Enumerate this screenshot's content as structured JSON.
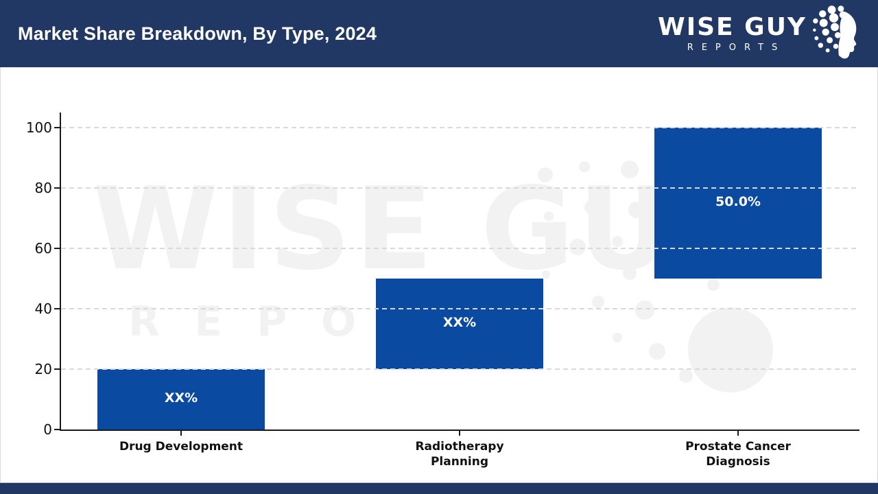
{
  "header": {
    "title": "Market Share Breakdown, By Type, 2024",
    "logo": {
      "line1": "WISE GUY",
      "line2": "REPORTS"
    }
  },
  "watermark": {
    "line1": "WISE GUY",
    "line2": "REPORTS"
  },
  "chart_data": {
    "type": "bar",
    "subtype": "waterfall",
    "title": "Market Share Breakdown, By Type, 2024",
    "categories": [
      "Drug Development",
      "Radiotherapy\nPlanning",
      "Prostate Cancer\nDiagnosis"
    ],
    "bars": [
      {
        "category": "Drug Development",
        "start": 0,
        "end": 20,
        "label": "XX%"
      },
      {
        "category": "Radiotherapy Planning",
        "start": 20,
        "end": 50,
        "label": "XX%"
      },
      {
        "category": "Prostate Cancer Diagnosis",
        "start": 50,
        "end": 100,
        "label": "50.0%"
      }
    ],
    "yticks": [
      0,
      20,
      40,
      60,
      80,
      100
    ],
    "ylim": [
      0,
      105
    ],
    "xlabel": "",
    "ylabel": "",
    "grid": "horizontal-dashed",
    "legend": "none"
  },
  "colors": {
    "header_bg": "#213864",
    "bar": "#0b4aa1",
    "grid": "#d9d9d9",
    "axis": "#1a1a1a",
    "watermark": "#f2f2f2",
    "bar_label_text": "#ffffff"
  }
}
